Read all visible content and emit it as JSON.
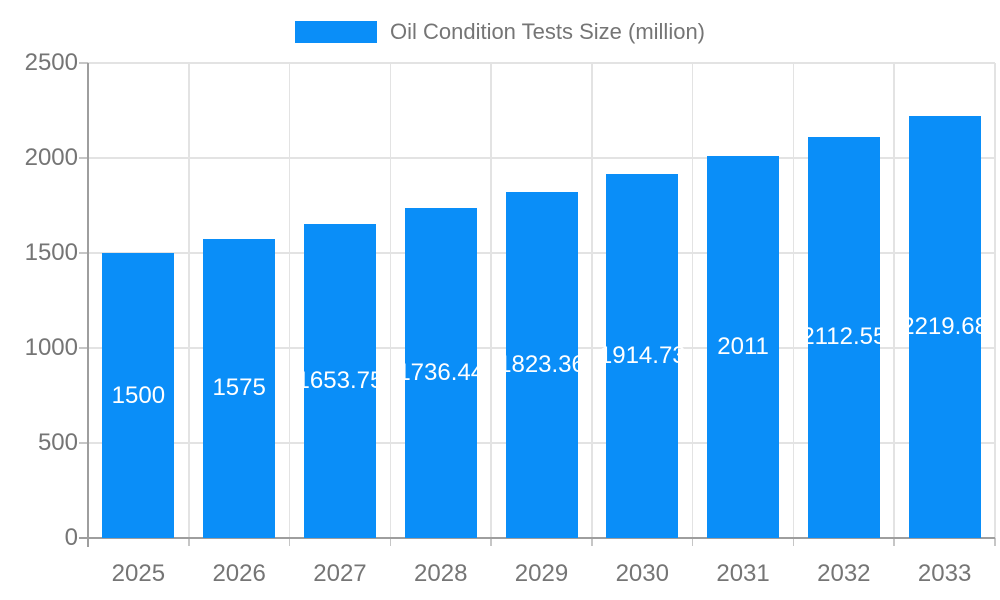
{
  "legend": {
    "label": "Oil Condition Tests Size (million)"
  },
  "colors": {
    "bar": "#0A8EF8",
    "grid": "#E3E3E3",
    "axis": "#9E9E9E",
    "tick_mark": "#C6C6C6",
    "tick_text": "#757575",
    "value_text": "#FFFFFF",
    "background": "#FFFFFF"
  },
  "chart_data": {
    "type": "bar",
    "title": "Oil Condition Tests Size (million)",
    "legend_position": "top",
    "grid": true,
    "xlabel": "",
    "ylabel": "",
    "categories": [
      "2025",
      "2026",
      "2027",
      "2028",
      "2029",
      "2030",
      "2031",
      "2032",
      "2033"
    ],
    "series": [
      {
        "name": "Oil Condition Tests Size (million)",
        "values": [
          1500,
          1575,
          1653.75,
          1736.44,
          1823.36,
          1914.73,
          2011,
          2112.55,
          2219.68
        ],
        "value_labels": [
          "1500",
          "1575",
          "1653.75",
          "1736.44",
          "1823.36",
          "1914.73",
          "2011",
          "2112.55",
          "2219.68"
        ]
      }
    ],
    "y_ticks": [
      0,
      500,
      1000,
      1500,
      2000,
      2500
    ],
    "y_tick_labels": [
      "0",
      "500",
      "1000",
      "1500",
      "2000",
      "2500"
    ],
    "ylim": [
      0,
      2500
    ]
  }
}
